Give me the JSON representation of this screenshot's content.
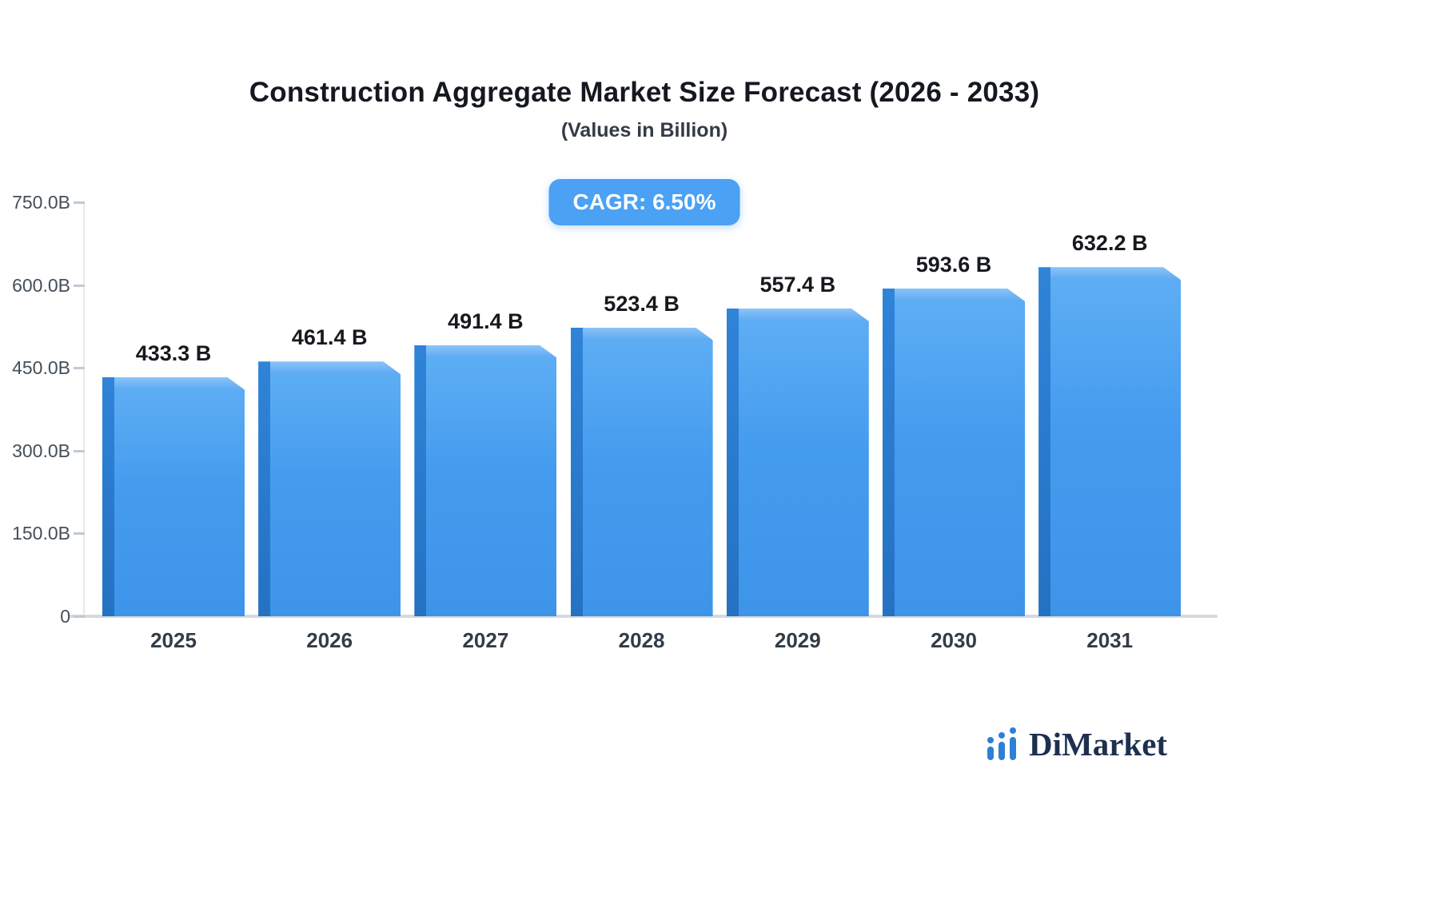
{
  "title": "Construction Aggregate Market Size Forecast (2026 - 2033)",
  "subtitle": "(Values in Billion)",
  "cagr_badge": "CAGR: 6.50%",
  "brand": {
    "name": "DiMarket"
  },
  "colors": {
    "bar_main": "#419BEE",
    "bar_shadow": "#2878CC",
    "bar_cap": "#7FBEF7",
    "badge_blue": "#4BA1F3",
    "logo_blue": "#2E7FD6",
    "logo_navy": "#1E3050",
    "axis_gray": "#D6DADE"
  },
  "chart_data": {
    "type": "bar",
    "title": "Construction Aggregate Market Size Forecast (2026 - 2033)",
    "subtitle": "(Values in Billion)",
    "categories": [
      "2025",
      "2026",
      "2027",
      "2028",
      "2029",
      "2030",
      "2031"
    ],
    "values": [
      433.3,
      461.4,
      491.4,
      523.4,
      557.4,
      593.6,
      632.2
    ],
    "value_labels": [
      "433.3 B",
      "461.4 B",
      "491.4 B",
      "523.4 B",
      "557.4 B",
      "593.6 B",
      "632.2 B"
    ],
    "xlabel": "",
    "ylabel": "",
    "ylim": [
      0,
      750
    ],
    "yticks": [
      "750.0B",
      "600.0B",
      "450.0B",
      "300.0B",
      "150.0B",
      "0"
    ],
    "grid": false,
    "legend": false,
    "annotation": "CAGR: 6.50%"
  }
}
